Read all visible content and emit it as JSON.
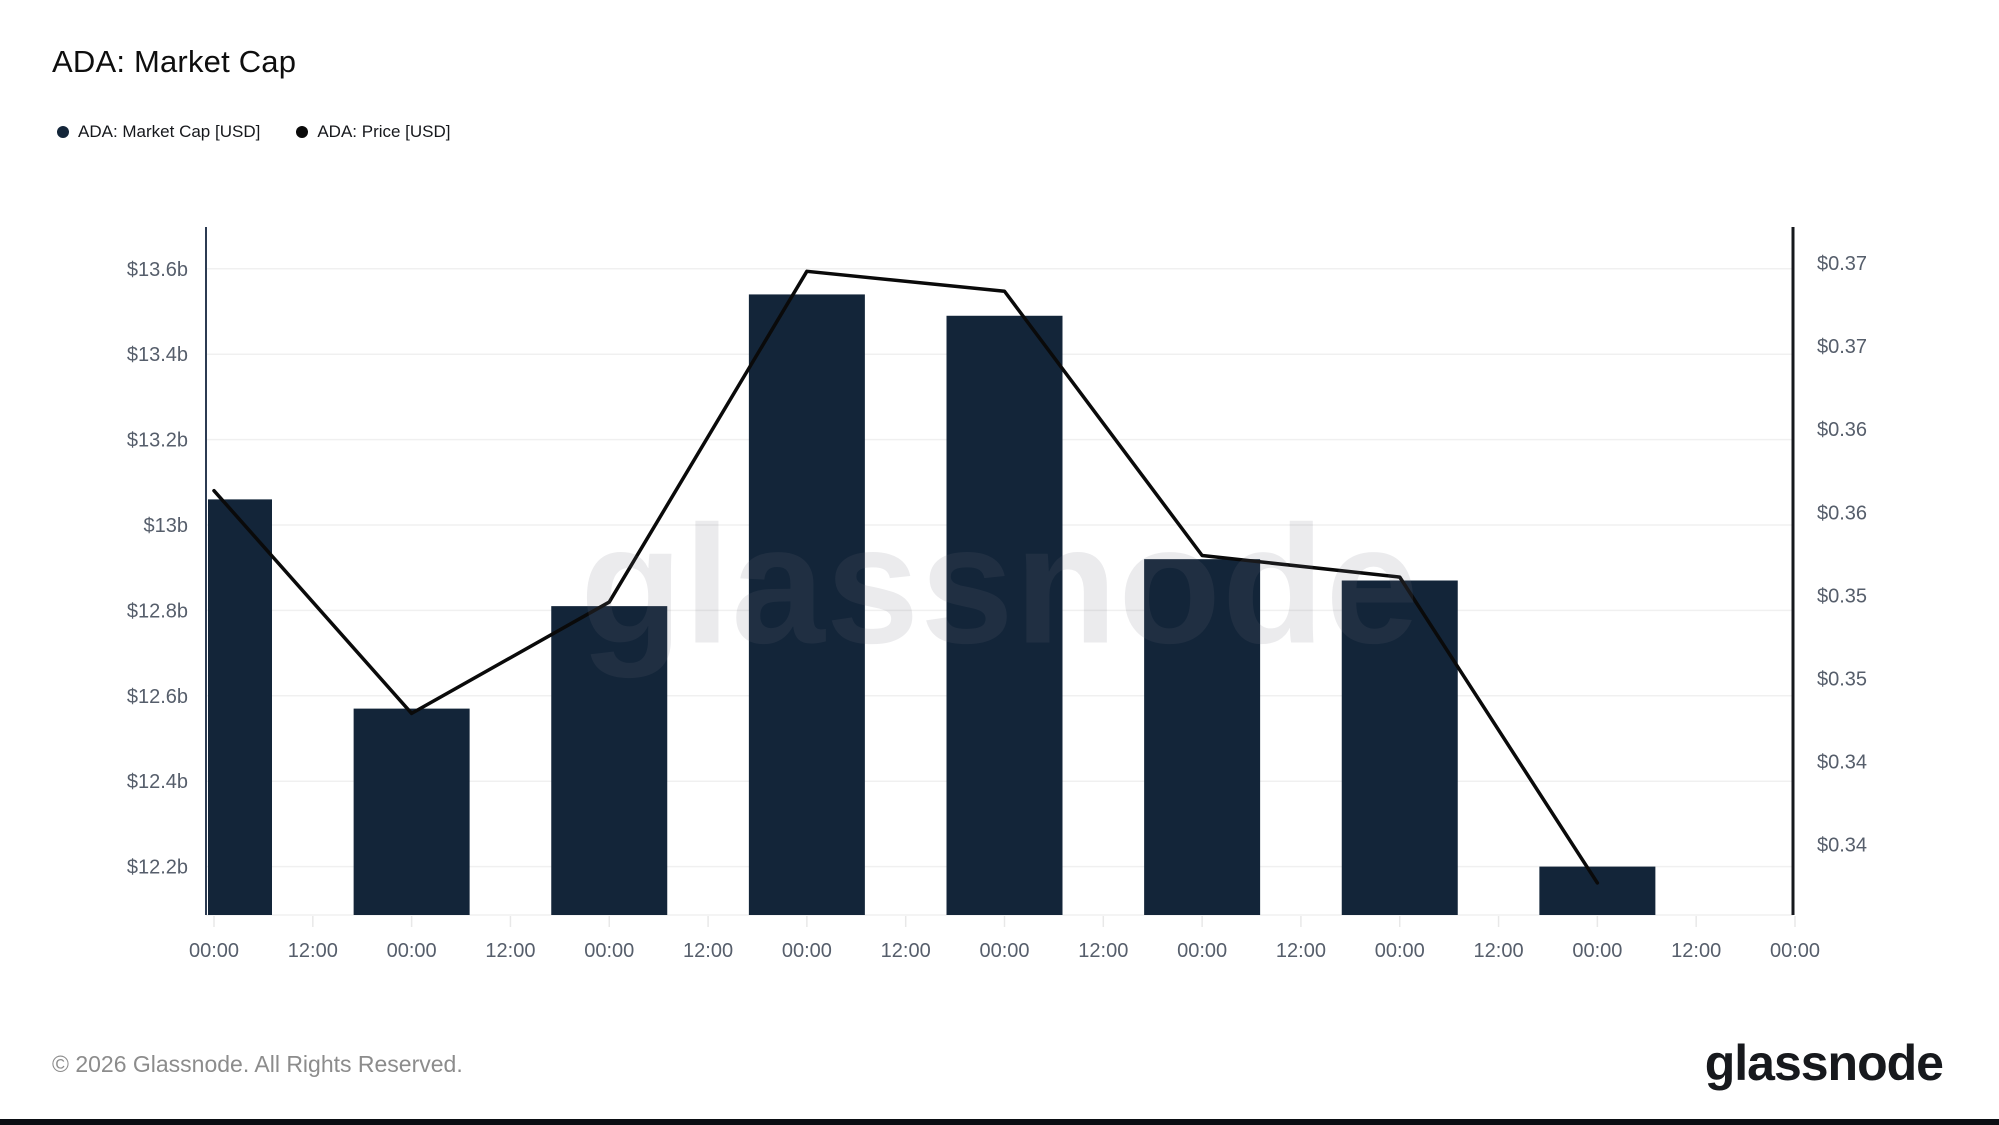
{
  "header": {
    "title": "ADA: Market Cap"
  },
  "legend": [
    {
      "label": "ADA: Market Cap [USD]",
      "color": "#132539"
    },
    {
      "label": "ADA: Price [USD]",
      "color": "#0a0a0a"
    }
  ],
  "watermark_text": "glassnode",
  "footer": {
    "copyright": "© 2026 Glassnode. All Rights Reserved.",
    "logo_text": "glassnode"
  },
  "colors": {
    "bar": "#132539",
    "price_line": "#0a0a0a",
    "grid": "#f0f0f0",
    "tick_mark": "#e8e8e8",
    "axis_label": "#565e6b",
    "left_axis_line": "#2c3b52",
    "right_axis_line": "#16181d",
    "footer_text": "#8c8c8c",
    "bottom_strip": "#0b0e13"
  },
  "chart_data": {
    "type": "bar",
    "title": "ADA: Market Cap",
    "legend_position": "top-left",
    "grid": "horizontal only",
    "x_tick_labels": [
      "00:00",
      "12:00",
      "00:00",
      "12:00",
      "00:00",
      "12:00",
      "00:00",
      "12:00",
      "00:00",
      "12:00",
      "00:00",
      "12:00",
      "00:00",
      "12:00",
      "00:00",
      "12:00",
      "00:00"
    ],
    "left_axis": {
      "name": "ADA: Market Cap [USD]",
      "unit": "billions USD",
      "tick_labels": [
        "$13.6b",
        "$13.4b",
        "$13.2b",
        "$13b",
        "$12.8b",
        "$12.6b",
        "$12.4b",
        "$12.2b"
      ],
      "tick_values": [
        13.6,
        13.4,
        13.2,
        13.0,
        12.8,
        12.6,
        12.4,
        12.2
      ],
      "range": [
        12.09,
        13.7
      ]
    },
    "right_axis": {
      "name": "ADA: Price [USD]",
      "unit": "USD",
      "tick_labels": [
        "$0.37",
        "$0.37",
        "$0.36",
        "$0.36",
        "$0.35",
        "$0.35",
        "$0.34",
        "$0.34"
      ],
      "tick_values": [
        0.37,
        0.365,
        0.36,
        0.355,
        0.35,
        0.345,
        0.34,
        0.335
      ],
      "range": [
        0.3308,
        0.3722
      ]
    },
    "series": [
      {
        "name": "ADA: Market Cap [USD]",
        "type": "bar",
        "axis": "left",
        "color": "#132539",
        "x_tick_index": [
          0,
          2,
          4,
          6,
          8,
          10,
          12,
          14
        ],
        "values": [
          13.06,
          12.57,
          12.81,
          13.54,
          13.49,
          12.92,
          12.87,
          12.2
        ]
      },
      {
        "name": "ADA: Price [USD]",
        "type": "line",
        "axis": "right",
        "color": "#0a0a0a",
        "x_tick_index": [
          0,
          2,
          4,
          6,
          8,
          10,
          12,
          14
        ],
        "values": [
          0.3563,
          0.3429,
          0.3496,
          0.3695,
          0.3683,
          0.3524,
          0.3511,
          0.3327
        ]
      }
    ]
  }
}
